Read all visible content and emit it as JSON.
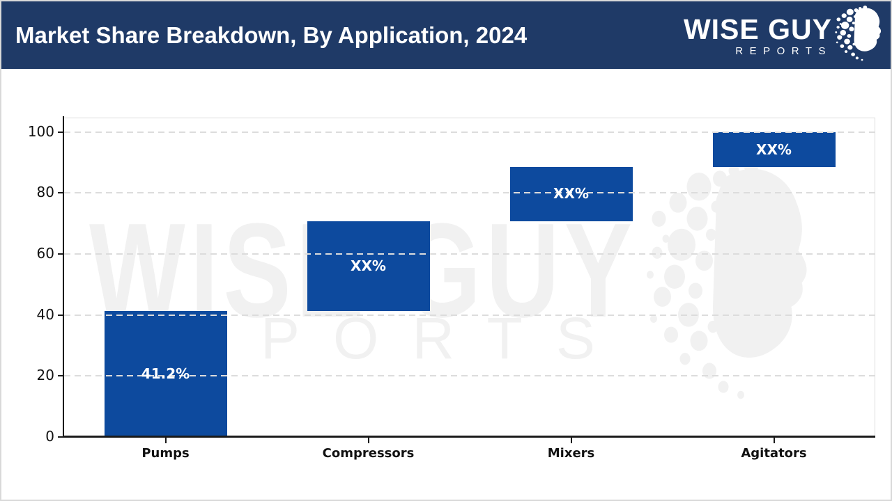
{
  "header": {
    "title": "Market Share Breakdown, By Application, 2024",
    "bg_color": "#1f3a67",
    "logo": {
      "line1": "WISE GUY",
      "line2": "REPORTS"
    }
  },
  "watermark": {
    "line1": "WISE GUY",
    "line2": "PORTS"
  },
  "chart_data": {
    "type": "bar",
    "subtype": "waterfall",
    "title": "Market Share Breakdown, By Application, 2024",
    "categories": [
      "Pumps",
      "Compressors",
      "Mixers",
      "Agitators"
    ],
    "segments": [
      {
        "category": "Pumps",
        "start": 0,
        "end": 41.2,
        "label": "41.2%"
      },
      {
        "category": "Compressors",
        "start": 41.2,
        "end": 70.8,
        "label": "XX%"
      },
      {
        "category": "Mixers",
        "start": 70.8,
        "end": 88.5,
        "label": "XX%"
      },
      {
        "category": "Agitators",
        "start": 88.5,
        "end": 100,
        "label": "XX%"
      }
    ],
    "xlabel": "",
    "ylabel": "",
    "yticks": [
      0,
      20,
      40,
      60,
      80,
      100
    ],
    "ylim": [
      0,
      104.5
    ],
    "grid": true,
    "grid_style": "dashed",
    "grid_color": "#dcdcdc",
    "bar_color": "#0d4a9e",
    "bar_label_color": "#ffffff",
    "legend": false
  }
}
